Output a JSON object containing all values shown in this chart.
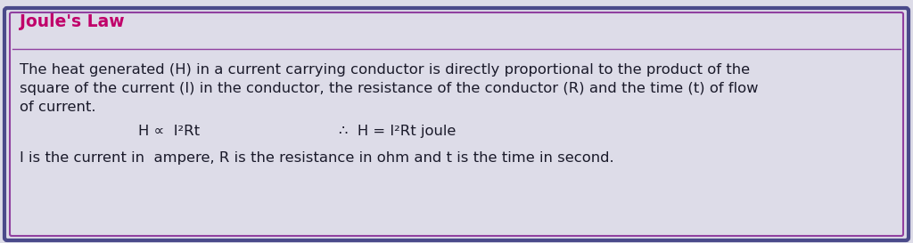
{
  "title": "Joule's Law",
  "title_color": "#c0006a",
  "body_line1": "The heat generated (H) in a current carrying conductor is directly proportional to the product of the",
  "body_line2": "square of the current (I) in the conductor, the resistance of the conductor (R) and the time (t) of flow",
  "body_line3": "of current.",
  "formula_left": "H ∝  I²Rt",
  "formula_right": "∴  H = I²Rt joule",
  "bottom_text": "I is the current in  ampere, R is the resistance in ohm and t is the time in second.",
  "bg_color": "#dddce8",
  "box_fill": "#dddce8",
  "border_outer": "#4a4a8a",
  "border_inner": "#9040a0",
  "text_color": "#1a1a2a",
  "title_fontsize": 13.5,
  "body_fontsize": 11.8,
  "formula_fontsize": 11.8,
  "fig_width": 10.24,
  "fig_height": 2.73,
  "dpi": 100
}
